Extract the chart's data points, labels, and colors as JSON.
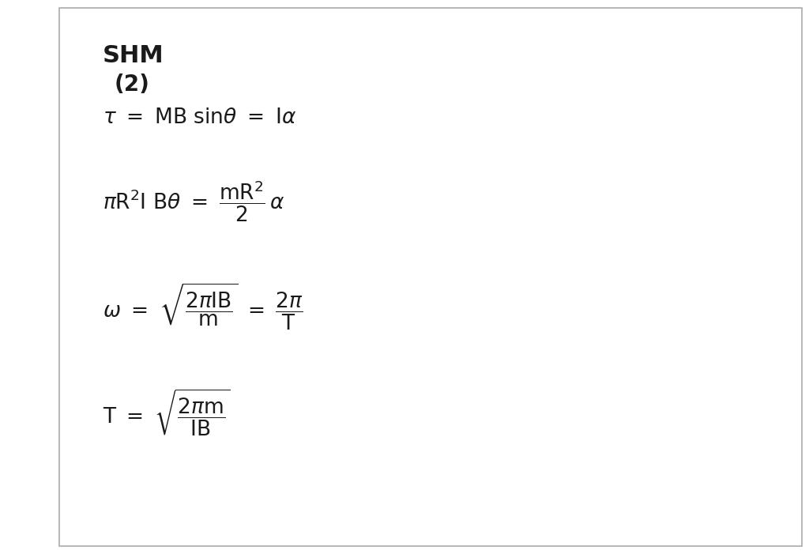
{
  "background_color": "#ffffff",
  "border_color": "#aaaaaa",
  "text_color": "#1a1a1a",
  "fig_width": 10.24,
  "fig_height": 7.01,
  "dpi": 100,
  "title_fontsize": 20,
  "eq_fontsize": 19
}
